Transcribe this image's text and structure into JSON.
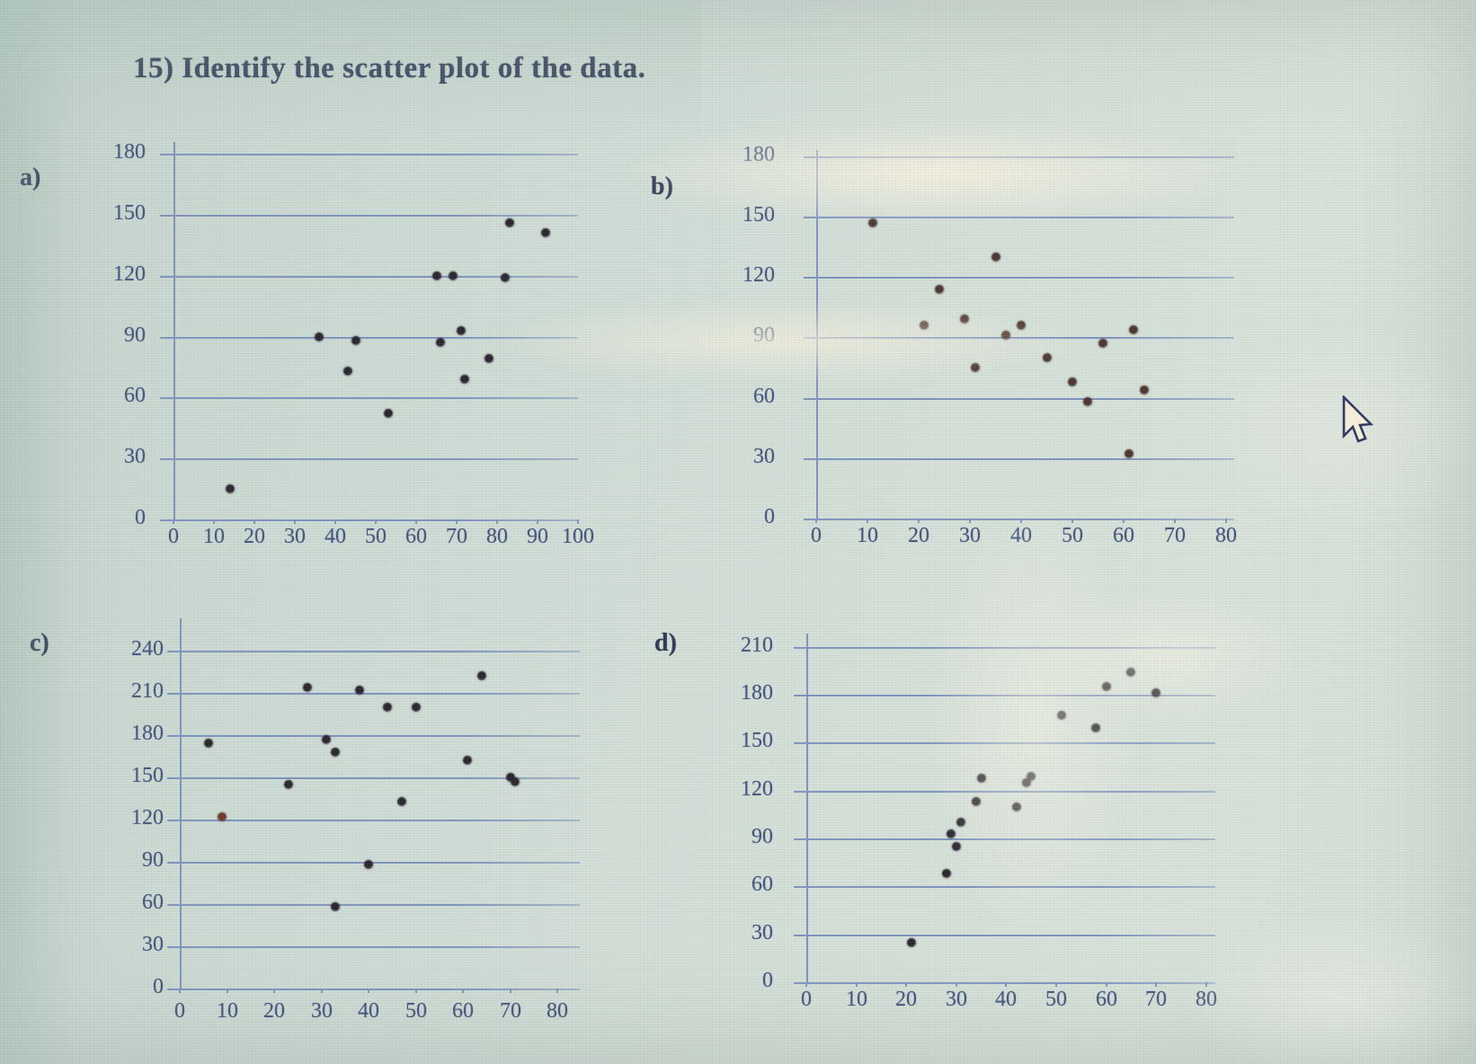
{
  "title": "15) Identify the scatter plot of the data.",
  "colors": {
    "grid": "#7e93bd",
    "axis": "#7e93bd",
    "tick_label": "#44537c",
    "title_text": "#2c3654",
    "dark": "#27212c",
    "brown": "#4a332b",
    "red": "#6e3526"
  },
  "cursor": {
    "name": "arrow-pointer"
  },
  "chart_data": [
    {
      "id": "a",
      "label": "a)",
      "type": "scatter",
      "xlim": [
        0,
        100
      ],
      "ylim": [
        0,
        180
      ],
      "x_ticks": [
        0,
        10,
        20,
        30,
        40,
        50,
        60,
        70,
        80,
        90,
        100
      ],
      "y_ticks": [
        0,
        30,
        60,
        90,
        120,
        150,
        180
      ],
      "grid": "horizontal",
      "legend": "none",
      "point_color": "dark",
      "points": [
        [
          14,
          15
        ],
        [
          36,
          90
        ],
        [
          43,
          73
        ],
        [
          45,
          88
        ],
        [
          53,
          52
        ],
        [
          65,
          120
        ],
        [
          66,
          87
        ],
        [
          69,
          120
        ],
        [
          71,
          93
        ],
        [
          72,
          69
        ],
        [
          78,
          79
        ],
        [
          82,
          119
        ],
        [
          83,
          146
        ],
        [
          92,
          141
        ]
      ]
    },
    {
      "id": "b",
      "label": "b)",
      "type": "scatter",
      "xlim": [
        0,
        80
      ],
      "ylim": [
        0,
        180
      ],
      "x_ticks": [
        0,
        10,
        20,
        30,
        40,
        50,
        60,
        70,
        80
      ],
      "y_ticks": [
        0,
        30,
        60,
        90,
        120,
        150,
        180
      ],
      "grid": "horizontal",
      "legend": "none",
      "point_color": "brown",
      "points": [
        [
          11,
          147
        ],
        [
          21,
          96
        ],
        [
          24,
          114
        ],
        [
          29,
          99
        ],
        [
          31,
          75
        ],
        [
          35,
          130
        ],
        [
          37,
          91
        ],
        [
          40,
          96
        ],
        [
          45,
          80
        ],
        [
          50,
          68
        ],
        [
          53,
          58
        ],
        [
          56,
          87
        ],
        [
          61,
          32
        ],
        [
          62,
          94
        ],
        [
          64,
          64
        ]
      ]
    },
    {
      "id": "c",
      "label": "c)",
      "type": "scatter",
      "xlim": [
        0,
        80
      ],
      "ylim": [
        0,
        240
      ],
      "x_ticks": [
        0,
        10,
        20,
        30,
        40,
        50,
        60,
        70,
        80
      ],
      "y_ticks": [
        0,
        30,
        60,
        90,
        120,
        150,
        180,
        210,
        240
      ],
      "grid": "horizontal",
      "legend": "none",
      "point_color": "dark",
      "points": [
        [
          6,
          174
        ],
        [
          9,
          122,
          "red"
        ],
        [
          23,
          145
        ],
        [
          27,
          214
        ],
        [
          31,
          177
        ],
        [
          33,
          168
        ],
        [
          33,
          58
        ],
        [
          38,
          212
        ],
        [
          40,
          88
        ],
        [
          44,
          200
        ],
        [
          47,
          133
        ],
        [
          50,
          200
        ],
        [
          61,
          162
        ],
        [
          64,
          222
        ],
        [
          70,
          150
        ],
        [
          71,
          147
        ]
      ]
    },
    {
      "id": "d",
      "label": "d)",
      "type": "scatter",
      "xlim": [
        0,
        80
      ],
      "ylim": [
        0,
        210
      ],
      "x_ticks": [
        0,
        10,
        20,
        30,
        40,
        50,
        60,
        70,
        80
      ],
      "y_ticks": [
        0,
        30,
        60,
        90,
        120,
        150,
        180,
        210
      ],
      "grid": "horizontal",
      "legend": "none",
      "point_color": "dark",
      "points": [
        [
          21,
          25
        ],
        [
          28,
          68
        ],
        [
          29,
          93
        ],
        [
          30,
          85
        ],
        [
          31,
          100
        ],
        [
          34,
          113
        ],
        [
          35,
          128
        ],
        [
          42,
          110
        ],
        [
          44,
          125
        ],
        [
          45,
          129
        ],
        [
          51,
          167
        ],
        [
          58,
          159
        ],
        [
          60,
          185
        ],
        [
          65,
          194
        ],
        [
          70,
          181
        ]
      ]
    }
  ]
}
